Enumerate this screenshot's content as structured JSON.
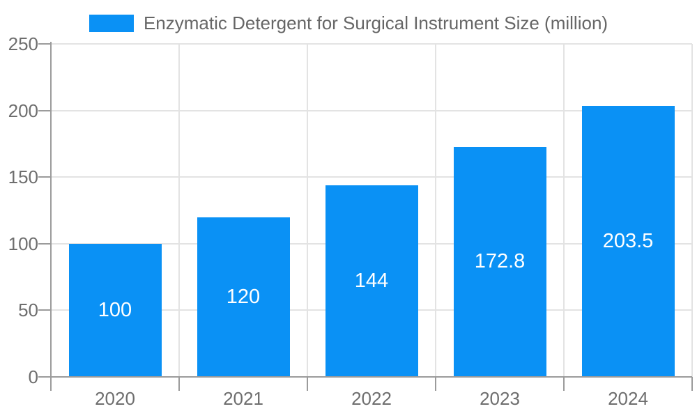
{
  "legend": {
    "label": "Enzymatic Detergent for Surgical Instrument Size (million)"
  },
  "colors": {
    "bar": "#0A91F5",
    "axis": "#9B9B9B",
    "grid": "#E3E3E3",
    "tick_label": "#6E6E6E",
    "legend_text": "#666666",
    "bar_label": "#FFFFFF"
  },
  "chart_data": {
    "type": "bar",
    "title": "",
    "xlabel": "",
    "ylabel": "",
    "categories": [
      "2020",
      "2021",
      "2022",
      "2023",
      "2024"
    ],
    "values": [
      100,
      120,
      144,
      172.8,
      203.5
    ],
    "bar_labels": [
      "100",
      "120",
      "144",
      "172.8",
      "203.5"
    ],
    "series_name": "Enzymatic Detergent for Surgical Instrument Size (million)",
    "ylim": [
      0,
      250
    ],
    "yticks": [
      0,
      50,
      100,
      150,
      200,
      250
    ],
    "grid": true,
    "legend_position": "top-center"
  }
}
